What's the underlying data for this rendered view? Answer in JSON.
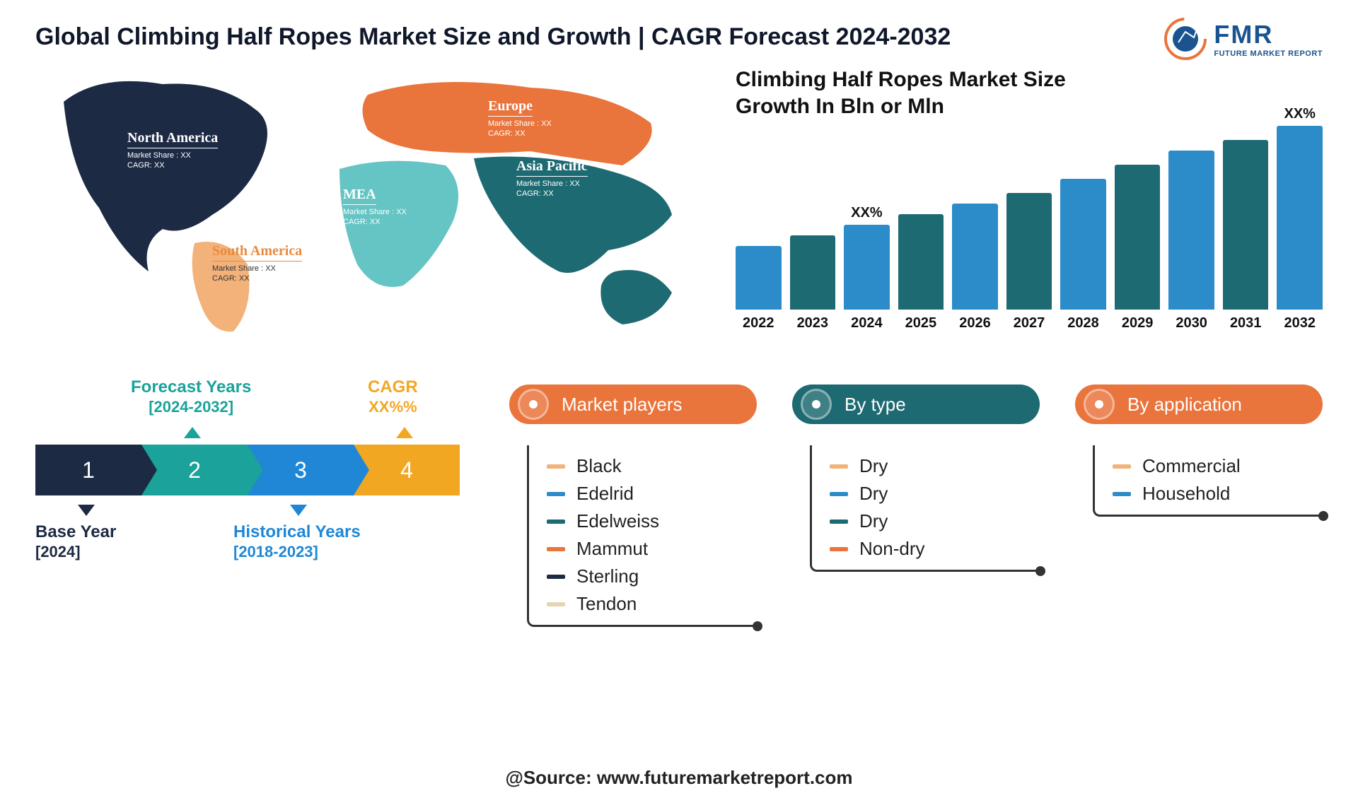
{
  "title": "Global Climbing Half Ropes  Market Size and Growth | CAGR Forecast 2024-2032",
  "logo": {
    "fmr": "FMR",
    "sub": "FUTURE MARKET REPORT"
  },
  "map": {
    "regions": {
      "na": {
        "name": "North America",
        "share": "Market Share : XX",
        "cagr": "CAGR: XX",
        "fill": "#1d2a44"
      },
      "sa": {
        "name": "South America",
        "share": "Market Share : XX",
        "cagr": "CAGR: XX",
        "fill": "#f3b27a"
      },
      "eu": {
        "name": "Europe",
        "share": "Market Share : XX",
        "cagr": "CAGR: XX",
        "fill": "#e9743c"
      },
      "mea": {
        "name": "MEA",
        "share": "Market Share : XX",
        "cagr": "CAGR: XX",
        "fill": "#65c4c4"
      },
      "ap": {
        "name": "Asia Pacific",
        "share": "Market Share : XX",
        "cagr": "CAGR: XX",
        "fill": "#1e6a72"
      }
    }
  },
  "chart": {
    "title": "Climbing Half Ropes Market Size Growth In Bln or Mln",
    "type": "bar",
    "years": [
      "2022",
      "2023",
      "2024",
      "2025",
      "2026",
      "2027",
      "2028",
      "2029",
      "2030",
      "2031",
      "2032"
    ],
    "values": [
      90,
      105,
      120,
      135,
      150,
      165,
      185,
      205,
      225,
      240,
      260
    ],
    "ymax": 260,
    "colors": [
      "#2c8cc9",
      "#1e6a72",
      "#2c8cc9",
      "#1e6a72",
      "#2c8cc9",
      "#1e6a72",
      "#2c8cc9",
      "#1e6a72",
      "#2c8cc9",
      "#1e6a72",
      "#2c8cc9"
    ],
    "annotations": {
      "2": "XX%",
      "10": "XX%"
    }
  },
  "timeline": {
    "forecast_label": "Forecast Years",
    "forecast_range": "[2024-2032]",
    "cagr_label": "CAGR",
    "cagr_value": "XX%%",
    "base_label": "Base Year",
    "base_range": "[2024]",
    "hist_label": "Historical Years",
    "hist_range": "[2018-2023]",
    "segments": [
      {
        "num": "1",
        "color": "#1d2a44"
      },
      {
        "num": "2",
        "color": "#1ba29a"
      },
      {
        "num": "3",
        "color": "#1f87d6"
      },
      {
        "num": "4",
        "color": "#f2a722"
      }
    ]
  },
  "categories": [
    {
      "title": "Market players",
      "pill_color": "#e9743c",
      "items": [
        {
          "label": "Black",
          "color": "#f3b27a"
        },
        {
          "label": "Edelrid",
          "color": "#2c8cc9"
        },
        {
          "label": "Edelweiss",
          "color": "#1e6a72"
        },
        {
          "label": "Mammut",
          "color": "#e9743c"
        },
        {
          "label": "Sterling",
          "color": "#1d2a44"
        },
        {
          "label": "Tendon",
          "color": "#e5d5b5"
        }
      ]
    },
    {
      "title": "By type",
      "pill_color": "#1e6a72",
      "items": [
        {
          "label": "Dry",
          "color": "#f3b27a"
        },
        {
          "label": "Dry",
          "color": "#2c8cc9"
        },
        {
          "label": "Dry",
          "color": "#1e6a72"
        },
        {
          "label": "Non-dry",
          "color": "#e9743c"
        }
      ]
    },
    {
      "title": "By application",
      "pill_color": "#e9743c",
      "items": [
        {
          "label": "Commercial",
          "color": "#f3b27a"
        },
        {
          "label": "Household",
          "color": "#2c8cc9"
        }
      ]
    }
  ],
  "source": "@Source: www.futuremarketreport.com"
}
